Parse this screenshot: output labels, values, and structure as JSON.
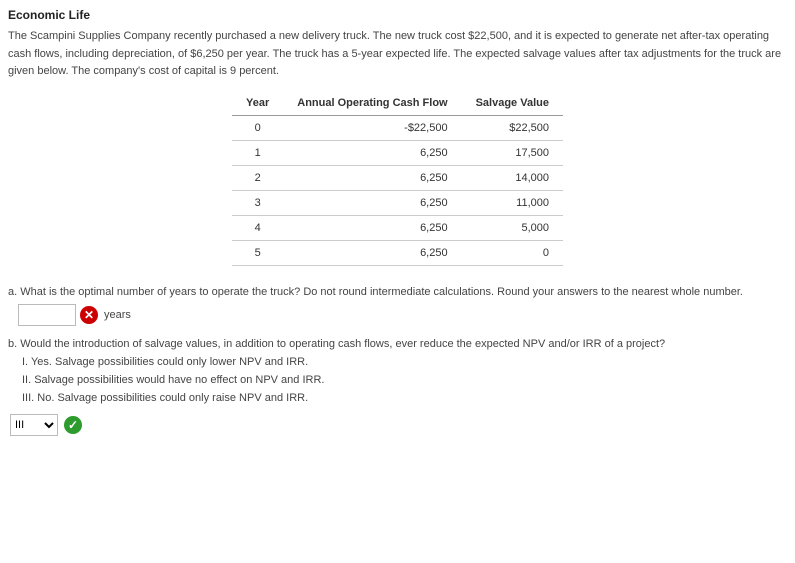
{
  "title": "Economic Life",
  "paragraph": "The Scampini Supplies Company recently purchased a new delivery truck. The new truck cost $22,500, and it is expected to generate net after-tax operating cash flows, including depreciation, of $6,250 per year. The truck has a 5-year expected life. The expected salvage values after tax adjustments for the truck are given below. The company's cost of capital is 9 percent.",
  "table": {
    "headers": {
      "year": "Year",
      "cash": "Annual Operating Cash Flow",
      "salvage": "Salvage Value"
    },
    "rows": [
      {
        "year": "0",
        "cash": "-$22,500",
        "salvage": "$22,500"
      },
      {
        "year": "1",
        "cash": "6,250",
        "salvage": "17,500"
      },
      {
        "year": "2",
        "cash": "6,250",
        "salvage": "14,000"
      },
      {
        "year": "3",
        "cash": "6,250",
        "salvage": "11,000"
      },
      {
        "year": "4",
        "cash": "6,250",
        "salvage": "5,000"
      },
      {
        "year": "5",
        "cash": "6,250",
        "salvage": "0"
      }
    ]
  },
  "qa": {
    "prompt": "a. What is the optimal number of years to operate the truck? Do not round intermediate calculations. Round your answers to the nearest whole number.",
    "input_value": "",
    "suffix": "years"
  },
  "qb": {
    "prompt": "b. Would the introduction of salvage values, in addition to operating cash flows, ever reduce the expected NPV and/or IRR of a project?",
    "opt1": "I. Yes. Salvage possibilities could only lower NPV and IRR.",
    "opt2": "II. Salvage possibilities would have no effect on NPV and IRR.",
    "opt3": "III. No. Salvage possibilities could only raise NPV and IRR.",
    "selected": "III"
  },
  "icons": {
    "wrong": "✕",
    "right": "✓"
  }
}
